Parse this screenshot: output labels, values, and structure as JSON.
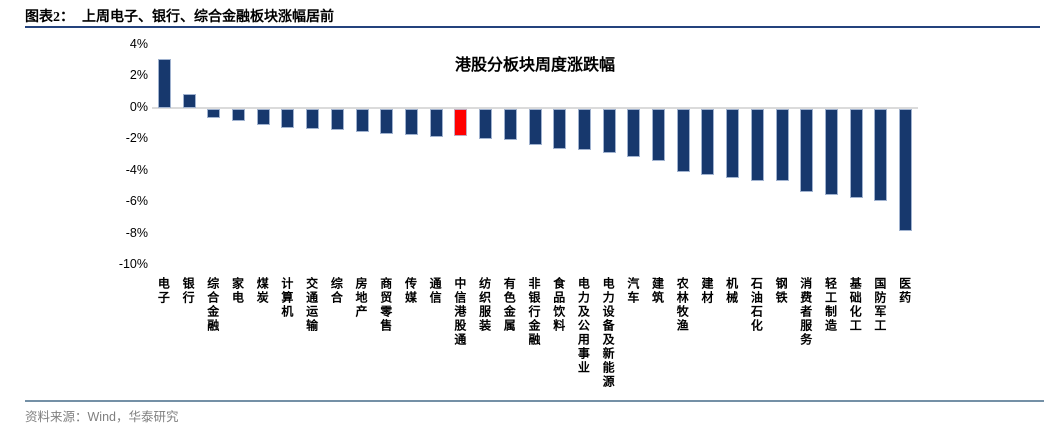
{
  "header": {
    "figure_label": "图表2：",
    "figure_title": "上周电子、银行、综合金融板块涨幅居前"
  },
  "chart_data": {
    "type": "bar",
    "title": "港股分板块周度涨跌幅",
    "unit": "%",
    "ylim": [
      -10,
      4
    ],
    "y_ticks": [
      "4%",
      "2%",
      "0%",
      "-2%",
      "-4%",
      "-6%",
      "-8%",
      "-10%"
    ],
    "grid": "zero-line-only",
    "legend_position": "none",
    "categories": [
      "电子",
      "银行",
      "综合金融",
      "家电",
      "煤炭",
      "计算机",
      "交通运输",
      "综合",
      "房地产",
      "商贸零售",
      "传媒",
      "通信",
      "中信港股通",
      "纺织服装",
      "有色金属",
      "非银行金融",
      "食品饮料",
      "电力及公用事业",
      "电力设备及新能源",
      "汽车",
      "建筑",
      "农林牧渔",
      "建材",
      "机械",
      "石油石化",
      "钢铁",
      "消费者服务",
      "轻工制造",
      "基础化工",
      "国防军工",
      "医药"
    ],
    "values": [
      3.1,
      0.9,
      -0.6,
      -0.8,
      -1.05,
      -1.25,
      -1.3,
      -1.35,
      -1.5,
      -1.6,
      -1.7,
      -1.8,
      -1.75,
      -1.9,
      -2.0,
      -2.3,
      -2.55,
      -2.6,
      -2.8,
      -3.05,
      -3.3,
      -4.05,
      -4.2,
      -4.4,
      -4.6,
      -4.6,
      -5.3,
      -5.5,
      -5.65,
      -5.9,
      -7.8
    ],
    "highlight_label": "中信港股通",
    "bar_color": "#17386D",
    "highlight_color": "#FF0000",
    "zero_line_color": "#DBDBDB"
  },
  "decor": {
    "header_rule_color": "#24437D",
    "footer_rule_color": "#7490A6"
  },
  "footer": {
    "source": "资料来源：Wind，华泰研究"
  }
}
